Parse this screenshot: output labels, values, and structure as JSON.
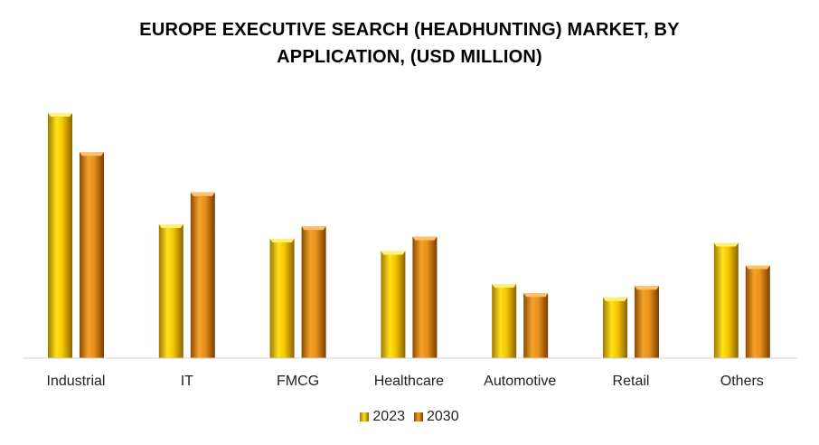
{
  "title": {
    "line1": "EUROPE EXECUTIVE SEARCH (HEADHUNTING) MARKET, BY",
    "line2": "APPLICATION, (USD MILLION)"
  },
  "chart_data": {
    "type": "bar",
    "title": "EUROPE EXECUTIVE SEARCH (HEADHUNTING) MARKET, BY APPLICATION, (USD MILLION)",
    "categories": [
      "Industrial",
      "IT",
      "FMCG",
      "Healthcare",
      "Automotive",
      "Retail",
      "Others"
    ],
    "series": [
      {
        "name": "2023",
        "color": "#F5C400",
        "values": [
          238,
          130,
          116,
          104,
          72,
          59,
          112
        ]
      },
      {
        "name": "2030",
        "color": "#E8901A",
        "values": [
          200,
          161,
          128,
          118,
          63,
          70,
          90
        ]
      }
    ],
    "ylim": [
      0,
      260
    ],
    "grid": false,
    "legend": "bottom-center",
    "xlabel": "",
    "ylabel": ""
  }
}
